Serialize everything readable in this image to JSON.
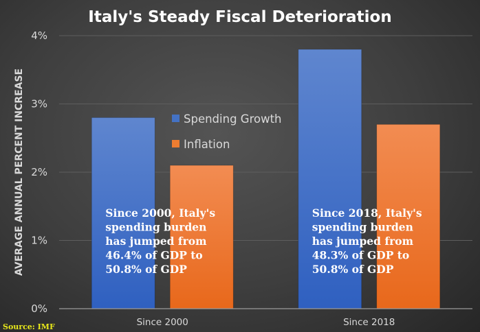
{
  "chart_data": {
    "type": "bar",
    "title": "Italy's Steady Fiscal Deterioration",
    "xlabel": "",
    "ylabel": "AVERAGE ANNUAL PERCENT INCREASE",
    "ylim": [
      0,
      4
    ],
    "yticks": [
      0,
      1,
      2,
      3,
      4
    ],
    "ytick_labels": [
      "0%",
      "1%",
      "2%",
      "3%",
      "4%"
    ],
    "grid": true,
    "categories": [
      "Since 2000",
      "Since 2018"
    ],
    "series": [
      {
        "name": "Spending Growth",
        "values": [
          2.8,
          3.8
        ],
        "color": "#4472c4"
      },
      {
        "name": "Inflation",
        "values": [
          2.1,
          2.7
        ],
        "color": "#ed7d31"
      }
    ],
    "legend": {
      "placement": "center-left",
      "entries": [
        "Spending Growth",
        "Inflation"
      ]
    },
    "annotations": [
      {
        "category": "Since 2000",
        "lines": [
          "Since 2000, Italy's",
          "spending burden",
          "has jumped from",
          "46.4% of GDP to",
          "50.8% of GDP"
        ]
      },
      {
        "category": "Since 2018",
        "lines": [
          "Since 2018, Italy's",
          "spending burden",
          "has jumped from",
          "48.3% of GDP to",
          "50.8% of GDP"
        ]
      }
    ],
    "source": "Source: IMF"
  }
}
